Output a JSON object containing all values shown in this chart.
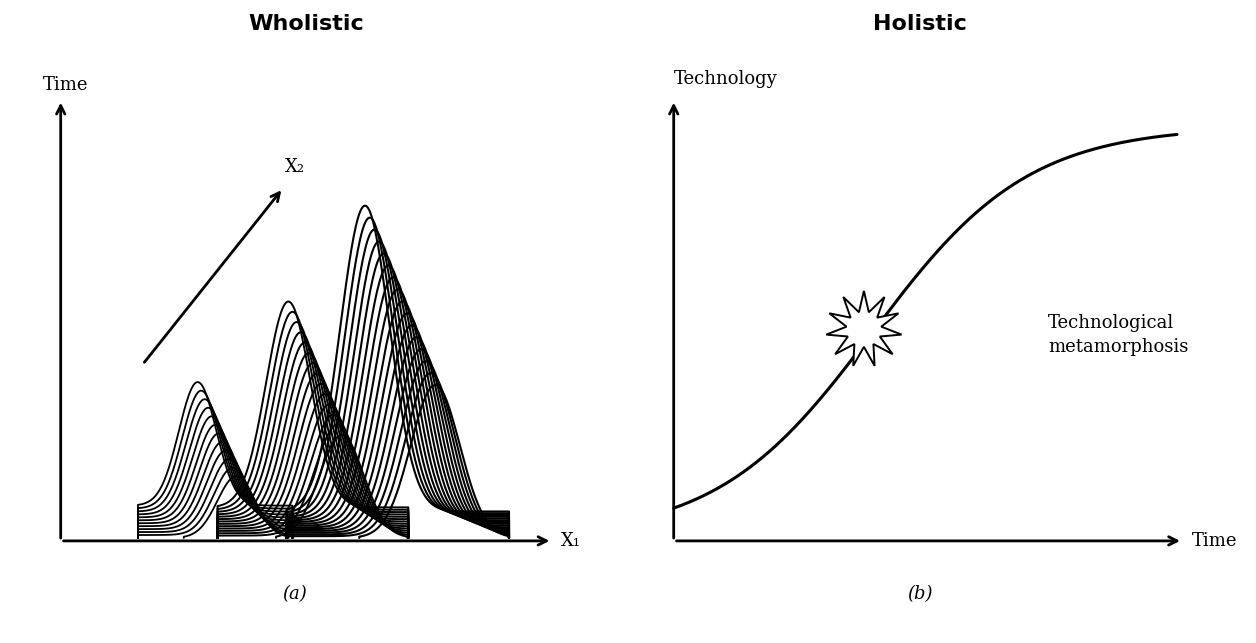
{
  "title_left": "Wholistic",
  "title_right": "Holistic",
  "label_a": "(a)",
  "label_b": "(b)",
  "left_yaxis_label": "Time",
  "left_x1_label": "X₁",
  "left_x2_label": "X₂",
  "right_yaxis_label": "Technology",
  "right_xaxis_label": "Time",
  "annotation_text": "Technological\nmetamorphosis",
  "bg_color": "#ffffff",
  "line_color": "#000000",
  "title_fontsize": 16,
  "label_fontsize": 13,
  "annotation_fontsize": 13
}
